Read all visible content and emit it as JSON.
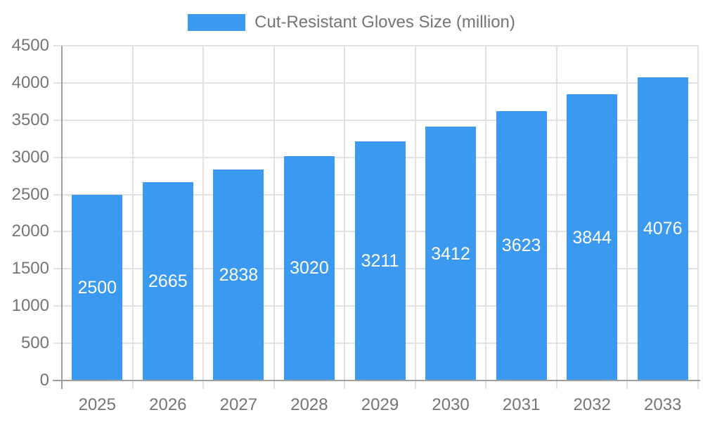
{
  "legend": {
    "label": "Cut-Resistant Gloves Size (million)",
    "swatch_color": "#3b99f0"
  },
  "chart_data": {
    "type": "bar",
    "title": "Cut-Resistant Gloves Size (million)",
    "categories": [
      "2025",
      "2026",
      "2027",
      "2028",
      "2029",
      "2030",
      "2031",
      "2032",
      "2033"
    ],
    "series": [
      {
        "name": "Cut-Resistant Gloves Size (million)",
        "color": "#3b99f0",
        "values": [
          2500,
          2665,
          2838,
          3020,
          3211,
          3412,
          3623,
          3844,
          4076
        ]
      }
    ],
    "value_labels": {
      "position": "inside-middle",
      "color": "#ffffff"
    },
    "xlabel": "",
    "ylabel": "",
    "ylim": [
      0,
      4500
    ],
    "yticks": [
      0,
      500,
      1000,
      1500,
      2000,
      2500,
      3000,
      3500,
      4000,
      4500
    ],
    "grid": true,
    "legend_position": "top"
  },
  "colors": {
    "bar": "#3b99f0",
    "axis_line": "#9e9e9e",
    "gridline": "#e2e2e2",
    "axis_text": "#757575",
    "bar_label": "#ffffff",
    "background": "#ffffff"
  }
}
